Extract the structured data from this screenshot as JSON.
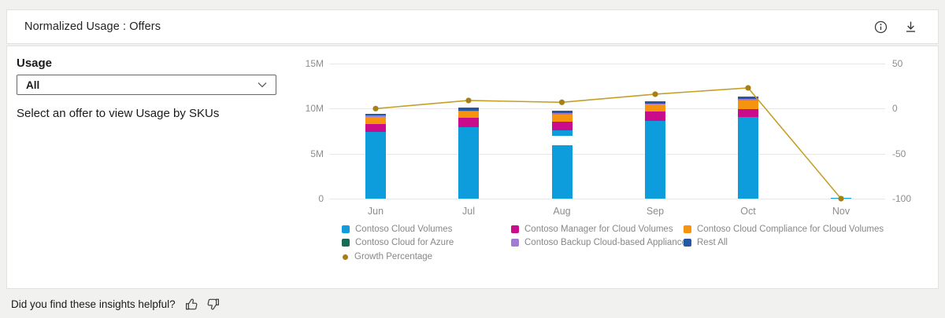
{
  "header": {
    "title": "Normalized Usage : Offers",
    "icons": [
      "info-icon",
      "download-icon"
    ]
  },
  "panel": {
    "usage_label": "Usage",
    "dropdown_value": "All",
    "helper_text": "Select an offer to view Usage by SKUs"
  },
  "footer": {
    "question": "Did you find these insights helpful?",
    "icons": [
      "thumbs-up-icon",
      "thumbs-down-icon"
    ]
  },
  "chart_data": {
    "type": "bar",
    "subtype": "stacked-bars-with-growth-line",
    "categories": [
      "Jun",
      "Jul",
      "Aug",
      "Sep",
      "Oct",
      "Nov"
    ],
    "units": "millions",
    "left_axis": {
      "ticks": [
        "0",
        "5M",
        "10M",
        "15M"
      ],
      "tick_values": [
        0,
        5,
        10,
        15
      ],
      "range_millions": [
        0,
        15
      ]
    },
    "right_axis": {
      "ticks": [
        "-100",
        "-50",
        "0",
        "50"
      ],
      "tick_values": [
        -100,
        -50,
        0,
        50
      ],
      "range": [
        -100,
        50
      ]
    },
    "series_colors": {
      "volumes": "#0d9ddd",
      "manager": "#ca0b8c",
      "compliance": "#f6930f",
      "azure": "#186a55",
      "backup": "#9e7cd6",
      "rest": "#2458a4",
      "growth": "#a87f15",
      "growth_line": "#c5a028"
    },
    "bars": [
      {
        "month": "Jun",
        "segments": [
          {
            "series": "volumes",
            "from": 0,
            "to": 7.44
          },
          {
            "series": "manager",
            "from": 7.44,
            "to": 8.31
          },
          {
            "series": "compliance",
            "from": 8.31,
            "to": 9.18
          },
          {
            "series": "azure",
            "from": 9.18,
            "to": 9.2
          },
          {
            "series": "backup",
            "from": 9.2,
            "to": 9.22
          },
          {
            "series": "rest",
            "from": 9.22,
            "to": 9.42
          }
        ]
      },
      {
        "month": "Jul",
        "segments": [
          {
            "series": "volumes",
            "from": 0,
            "to": 7.96
          },
          {
            "series": "manager",
            "from": 7.96,
            "to": 8.98
          },
          {
            "series": "compliance",
            "from": 8.98,
            "to": 9.76
          },
          {
            "series": "azure",
            "from": 9.76,
            "to": 9.79
          },
          {
            "series": "backup",
            "from": 9.79,
            "to": 9.81
          },
          {
            "series": "rest",
            "from": 9.81,
            "to": 10.12
          }
        ]
      },
      {
        "month": "Aug",
        "segments": [
          {
            "series": "volumes",
            "from": 0,
            "to": 5.9
          },
          {
            "series": "volumes",
            "from": 6.98,
            "to": 7.62
          },
          {
            "series": "manager",
            "from": 7.62,
            "to": 8.55
          },
          {
            "series": "compliance",
            "from": 8.55,
            "to": 9.45
          },
          {
            "series": "azure",
            "from": 9.45,
            "to": 9.48
          },
          {
            "series": "backup",
            "from": 9.48,
            "to": 9.5
          },
          {
            "series": "rest",
            "from": 9.5,
            "to": 9.8
          }
        ]
      },
      {
        "month": "Sep",
        "segments": [
          {
            "series": "volumes",
            "from": 0,
            "to": 8.66
          },
          {
            "series": "manager",
            "from": 8.66,
            "to": 9.68
          },
          {
            "series": "compliance",
            "from": 9.68,
            "to": 10.55
          },
          {
            "series": "azure",
            "from": 10.55,
            "to": 10.57
          },
          {
            "series": "backup",
            "from": 10.57,
            "to": 10.59
          },
          {
            "series": "rest",
            "from": 10.59,
            "to": 10.79
          }
        ]
      },
      {
        "month": "Oct",
        "segments": [
          {
            "series": "volumes",
            "from": 0,
            "to": 9.09
          },
          {
            "series": "manager",
            "from": 9.09,
            "to": 9.97
          },
          {
            "series": "compliance",
            "from": 9.97,
            "to": 11.01
          },
          {
            "series": "azure",
            "from": 11.01,
            "to": 11.03
          },
          {
            "series": "backup",
            "from": 11.03,
            "to": 11.05
          },
          {
            "series": "rest",
            "from": 11.05,
            "to": 11.36
          }
        ]
      },
      {
        "month": "Nov",
        "segments": [
          {
            "series": "volumes",
            "from": 0,
            "to": 0.12
          }
        ]
      }
    ],
    "growth_line": {
      "name": "Growth Percentage",
      "values": [
        0,
        9,
        7,
        16,
        23,
        -100
      ]
    },
    "legend": [
      {
        "label": "Contoso Cloud Volumes",
        "series": "volumes",
        "shape": "square"
      },
      {
        "label": "Contoso Manager for Cloud Volumes",
        "series": "manager",
        "shape": "square"
      },
      {
        "label": "Contoso Cloud Compliance for Cloud Volumes",
        "series": "compliance",
        "shape": "square"
      },
      {
        "label": "Contoso Cloud for Azure",
        "series": "azure",
        "shape": "square"
      },
      {
        "label": "Contoso Backup Cloud-based Appliance",
        "series": "backup",
        "shape": "square"
      },
      {
        "label": "Rest All",
        "series": "rest",
        "shape": "square"
      },
      {
        "label": "Growth Percentage",
        "series": "growth",
        "shape": "dot"
      }
    ],
    "legend_position": "bottom",
    "grid": true
  }
}
